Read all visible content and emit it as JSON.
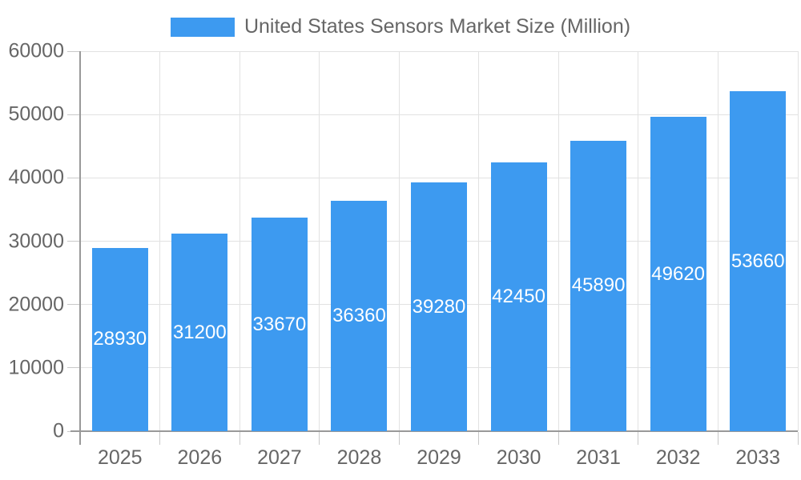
{
  "chart_data": {
    "type": "bar",
    "legend_label": "United States Sensors Market Size (Million)",
    "legend_position": "top",
    "categories": [
      "2025",
      "2026",
      "2027",
      "2028",
      "2029",
      "2030",
      "2031",
      "2032",
      "2033"
    ],
    "values": [
      28930,
      31200,
      33670,
      36360,
      39280,
      42450,
      45890,
      49620,
      53660
    ],
    "title": "",
    "xlabel": "",
    "ylabel": "",
    "ylim": [
      0,
      60000
    ],
    "yticks": [
      0,
      10000,
      20000,
      30000,
      40000,
      50000,
      60000
    ],
    "grid": true,
    "bar_color": "#3D9AF0",
    "value_label_color": "#FFFFFF",
    "axis_text_color": "#666666",
    "legend_text_color": "#666666",
    "gridline_color": "#E2E2E2",
    "tick_color": "#C9C9C9",
    "axis_line_color": "#999999",
    "background_color": "#FFFFFF"
  }
}
